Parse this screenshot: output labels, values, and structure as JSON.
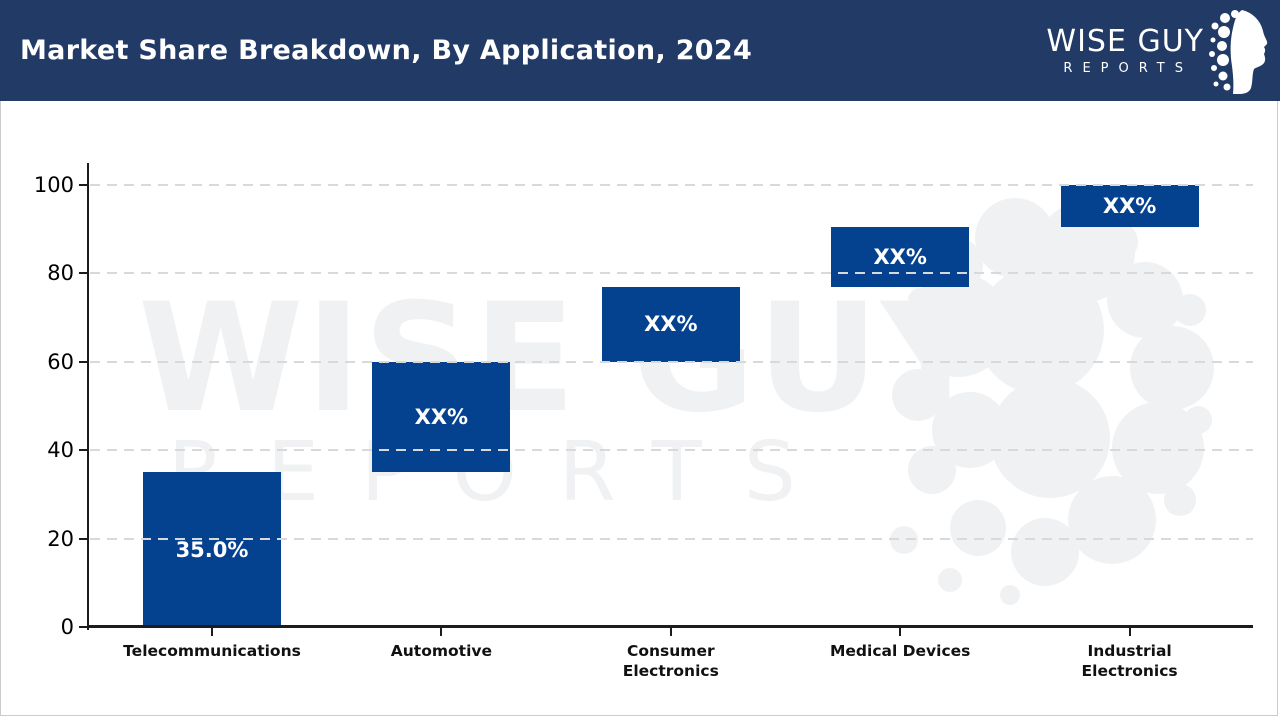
{
  "header": {
    "title": "Market Share Breakdown, By Application, 2024",
    "logo": {
      "name": "WISE GUY",
      "tagline": "REPORTS"
    }
  },
  "watermark": {
    "line1": "WISE GUY",
    "line2": "REPORTS"
  },
  "chart_data": {
    "type": "bar",
    "subtype": "waterfall",
    "title": "Market Share Breakdown, By Application, 2024",
    "xlabel": "",
    "ylabel": "",
    "ylim": [
      0,
      105
    ],
    "yticks": [
      0,
      20,
      40,
      60,
      80,
      100
    ],
    "grid": "horizontal-dashed-on-top",
    "bar_color": "#04418F",
    "categories": [
      "Telecommunications",
      "Automotive",
      "Consumer Electronics",
      "Medical Devices",
      "Industrial Electronics"
    ],
    "segments": [
      {
        "category": "Telecommunications",
        "lines": [
          "Telecommunications"
        ],
        "start": 0,
        "end": 35,
        "label": "35.0%"
      },
      {
        "category": "Automotive",
        "lines": [
          "Automotive"
        ],
        "start": 35,
        "end": 60,
        "label": "XX%"
      },
      {
        "category": "Consumer Electronics",
        "lines": [
          "Consumer",
          "Electronics"
        ],
        "start": 60,
        "end": 77,
        "label": "XX%"
      },
      {
        "category": "Medical Devices",
        "lines": [
          "Medical Devices"
        ],
        "start": 77,
        "end": 90.5,
        "label": "XX%"
      },
      {
        "category": "Industrial Electronics",
        "lines": [
          "Industrial",
          "Electronics"
        ],
        "start": 90.5,
        "end": 100,
        "label": "XX%"
      }
    ]
  }
}
